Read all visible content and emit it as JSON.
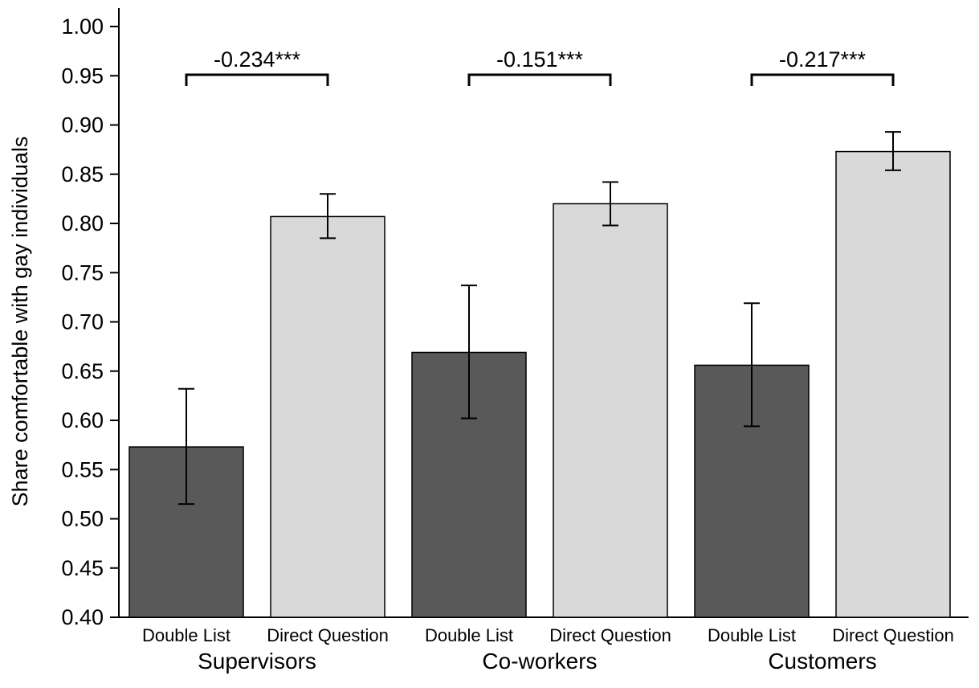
{
  "chart_data": {
    "type": "bar",
    "title": "",
    "ylabel": "Share comfortable with gay individuals",
    "xlabel": "",
    "ylim": [
      0.4,
      1.0
    ],
    "yticks": [
      "0.40",
      "0.45",
      "0.50",
      "0.55",
      "0.60",
      "0.65",
      "0.70",
      "0.75",
      "0.80",
      "0.85",
      "0.90",
      "0.95",
      "1.00"
    ],
    "grid": false,
    "legend": "none",
    "error_bars": true,
    "groups": [
      "Supervisors",
      "Co-workers",
      "Customers"
    ],
    "bar_labels": [
      "Double List",
      "Direct Question"
    ],
    "series": [
      {
        "name": "Double List",
        "color": "#595959",
        "values": [
          0.573,
          0.669,
          0.656
        ],
        "ci_low": [
          0.515,
          0.602,
          0.594
        ],
        "ci_high": [
          0.632,
          0.737,
          0.719
        ]
      },
      {
        "name": "Direct Question",
        "color": "#d9d9d9",
        "values": [
          0.807,
          0.82,
          0.873
        ],
        "ci_low": [
          0.785,
          0.798,
          0.854
        ],
        "ci_high": [
          0.83,
          0.842,
          0.893
        ]
      }
    ],
    "annotations": [
      {
        "group": "Supervisors",
        "label": "-0.234***"
      },
      {
        "group": "Co-workers",
        "label": "-0.151***"
      },
      {
        "group": "Customers",
        "label": "-0.217***"
      }
    ],
    "colors": {
      "bar_dark": "#595959",
      "bar_light": "#d9d9d9",
      "axis": "#000000",
      "background": "#ffffff"
    }
  }
}
